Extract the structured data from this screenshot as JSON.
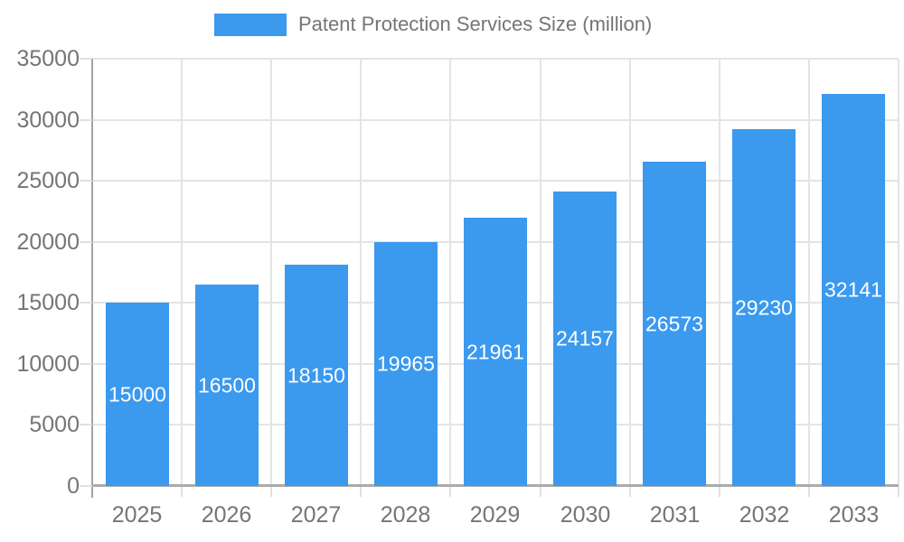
{
  "legend": {
    "label": "Patent Protection Services Size (million)",
    "swatch_color": "#3b99ee"
  },
  "chart_data": {
    "type": "bar",
    "title": "Patent Protection Services Size (million)",
    "categories": [
      "2025",
      "2026",
      "2027",
      "2028",
      "2029",
      "2030",
      "2031",
      "2032",
      "2033"
    ],
    "values": [
      15000,
      16500,
      18150,
      19965,
      21961,
      24157,
      26573,
      29230,
      32141
    ],
    "series_name": "Patent Protection Services Size (million)",
    "xlabel": "",
    "ylabel": "",
    "ylim": [
      0,
      35000
    ],
    "yticks": [
      0,
      5000,
      10000,
      15000,
      20000,
      25000,
      30000,
      35000
    ],
    "grid": true,
    "legend_position": "top",
    "bar_color": "#3b99ee",
    "bar_label_color": "#ffffff",
    "bar_label_position": "inside-center"
  },
  "colors": {
    "bar": "#3b99ee",
    "grid": "#e4e4e4",
    "y_axis": "#a3a3a3",
    "x_axis": "#ababab",
    "tick": "#e0e0e0",
    "text": "#757575",
    "bar_label": "#ffffff",
    "background": "#ffffff"
  }
}
